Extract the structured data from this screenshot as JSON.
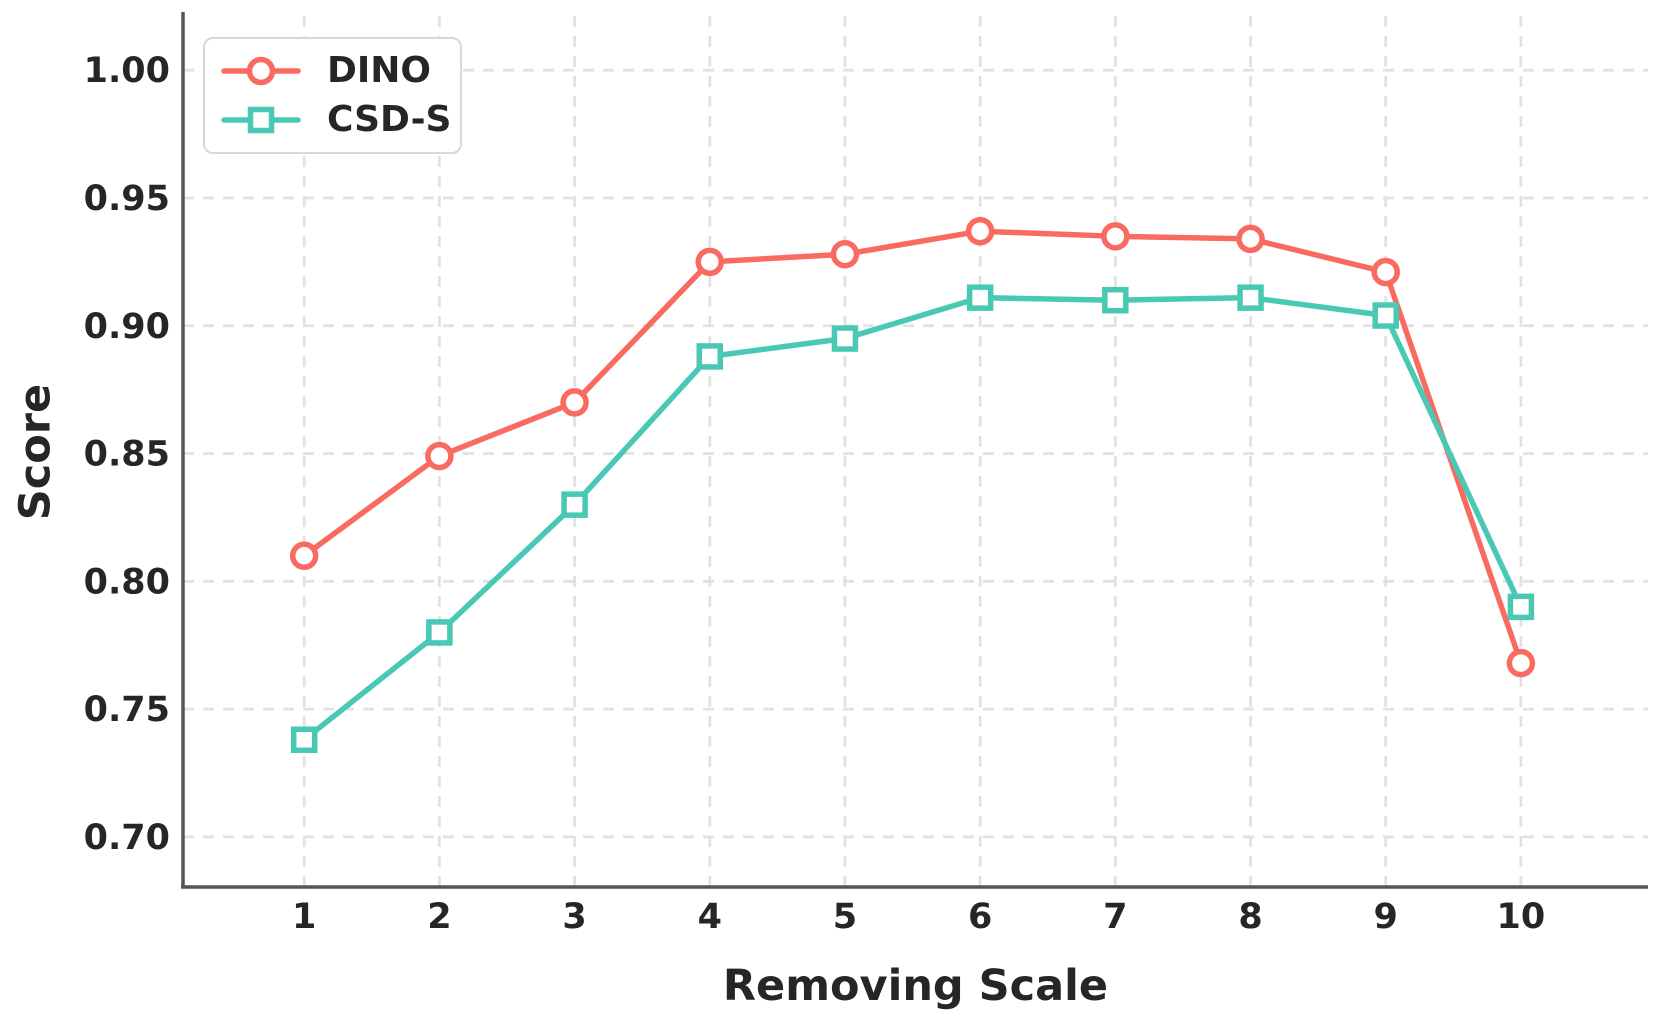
{
  "figure": {
    "background": "#FFFFFF"
  },
  "chart_data": {
    "type": "line",
    "title": "",
    "xlabel": "Removing Scale",
    "ylabel": "Score",
    "x": [
      1,
      2,
      3,
      4,
      5,
      6,
      7,
      8,
      9,
      10
    ],
    "x_tick_labels": [
      "1",
      "2",
      "3",
      "4",
      "5",
      "6",
      "7",
      "8",
      "9",
      "10"
    ],
    "y_ticks": [
      0.7,
      0.75,
      0.8,
      0.85,
      0.9,
      0.95,
      1.0
    ],
    "y_tick_labels": [
      "0.70",
      "0.75",
      "0.80",
      "0.85",
      "0.90",
      "0.95",
      "1.00"
    ],
    "xlim": [
      0.1,
      11.0
    ],
    "ylim": [
      0.68,
      1.02
    ],
    "grid": {
      "visible": true,
      "style": "dashed",
      "color": "#E2E2E2"
    },
    "axis_color": "#555555",
    "text_color": "#262626",
    "legend": {
      "position": "upper-left",
      "border_color": "#D8D8D8"
    },
    "series": [
      {
        "name": "DINO",
        "color": "#F96B61",
        "marker": "circle",
        "values": [
          0.81,
          0.849,
          0.87,
          0.925,
          0.928,
          0.937,
          0.935,
          0.934,
          0.921,
          0.768
        ]
      },
      {
        "name": "CSD-S",
        "color": "#49C9B4",
        "marker": "square",
        "values": [
          0.738,
          0.78,
          0.83,
          0.888,
          0.895,
          0.911,
          0.91,
          0.911,
          0.904,
          0.79
        ]
      }
    ]
  }
}
